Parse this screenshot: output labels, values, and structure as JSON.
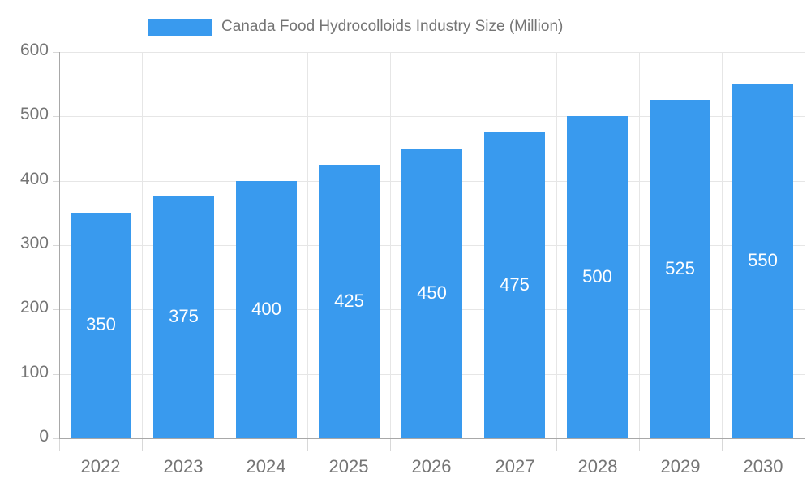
{
  "legend": {
    "label": "Canada Food Hydrocolloids Industry Size (Million)",
    "position": "top"
  },
  "colors": {
    "bar": "#399AEE",
    "bar_value_text": "#FFFFFF",
    "tick_text": "#757575",
    "legend_text": "#757575",
    "gridline": "#E6E6E6",
    "axis_line": "#A8A8A8",
    "tick_mark": "#D8D8D8",
    "background": "#FFFFFF"
  },
  "chart_data": {
    "type": "bar",
    "title": "Canada Food Hydrocolloids Industry Size (Million)",
    "series_name": "Canada Food Hydrocolloids Industry Size (Million)",
    "categories": [
      "2022",
      "2023",
      "2024",
      "2025",
      "2026",
      "2027",
      "2028",
      "2029",
      "2030"
    ],
    "values": [
      350,
      375,
      400,
      425,
      450,
      475,
      500,
      525,
      550
    ],
    "value_labels_position": "inside-center",
    "xlabel": "",
    "ylabel": "",
    "ylim": [
      0,
      600
    ],
    "yticks": [
      0,
      100,
      200,
      300,
      400,
      500,
      600
    ],
    "grid": "on",
    "legend_position": "top"
  }
}
